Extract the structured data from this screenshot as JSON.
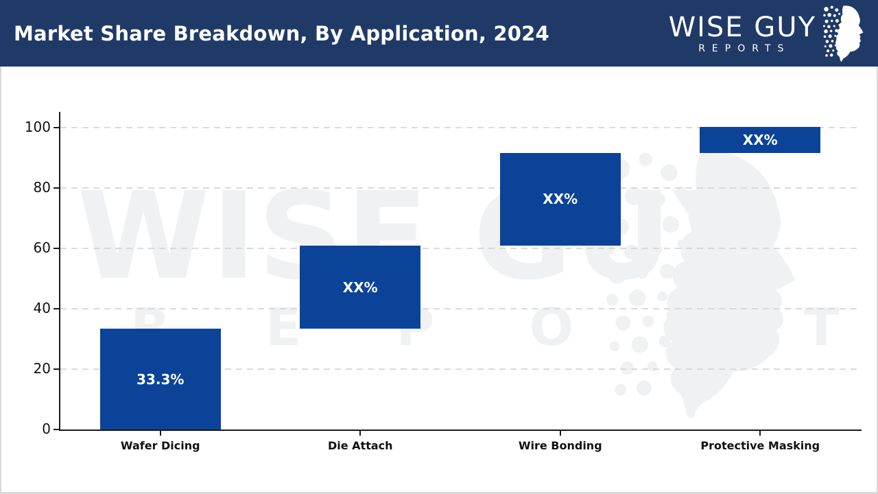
{
  "header": {
    "title": "Market Share Breakdown, By Application, 2024",
    "logo": {
      "line1": "WISE GUY",
      "line2": "REPORTS"
    }
  },
  "watermark": {
    "line1": "WISE GUY",
    "line2": "REPORTS"
  },
  "colors": {
    "header_bg": "#203A68",
    "bar_fill": "#0B4399",
    "bar_label_text": "#FFFFFF",
    "grid": "#D9D9D9",
    "axis": "#1A1A1A",
    "watermark": "#F0F1F3"
  },
  "chart_data": {
    "type": "bar",
    "subtype": "waterfall",
    "title": "Market Share Breakdown, By Application, 2024",
    "categories": [
      "Wafer Dicing",
      "Die Attach",
      "Wire Bonding",
      "Protective Masking"
    ],
    "bars": [
      {
        "category": "Wafer Dicing",
        "start": 0,
        "end": 33.3,
        "label": "33.3%"
      },
      {
        "category": "Die Attach",
        "start": 33.3,
        "end": 61.0,
        "label": "XX%"
      },
      {
        "category": "Wire Bonding",
        "start": 61.0,
        "end": 91.7,
        "label": "XX%"
      },
      {
        "category": "Protective Masking",
        "start": 91.7,
        "end": 100.2,
        "label": "XX%"
      }
    ],
    "yticks": [
      0,
      20,
      40,
      60,
      80,
      100
    ],
    "ylim": [
      0,
      105
    ],
    "xlabel": "",
    "ylabel": "",
    "grid": "horizontal-dashed",
    "legend": "none"
  }
}
